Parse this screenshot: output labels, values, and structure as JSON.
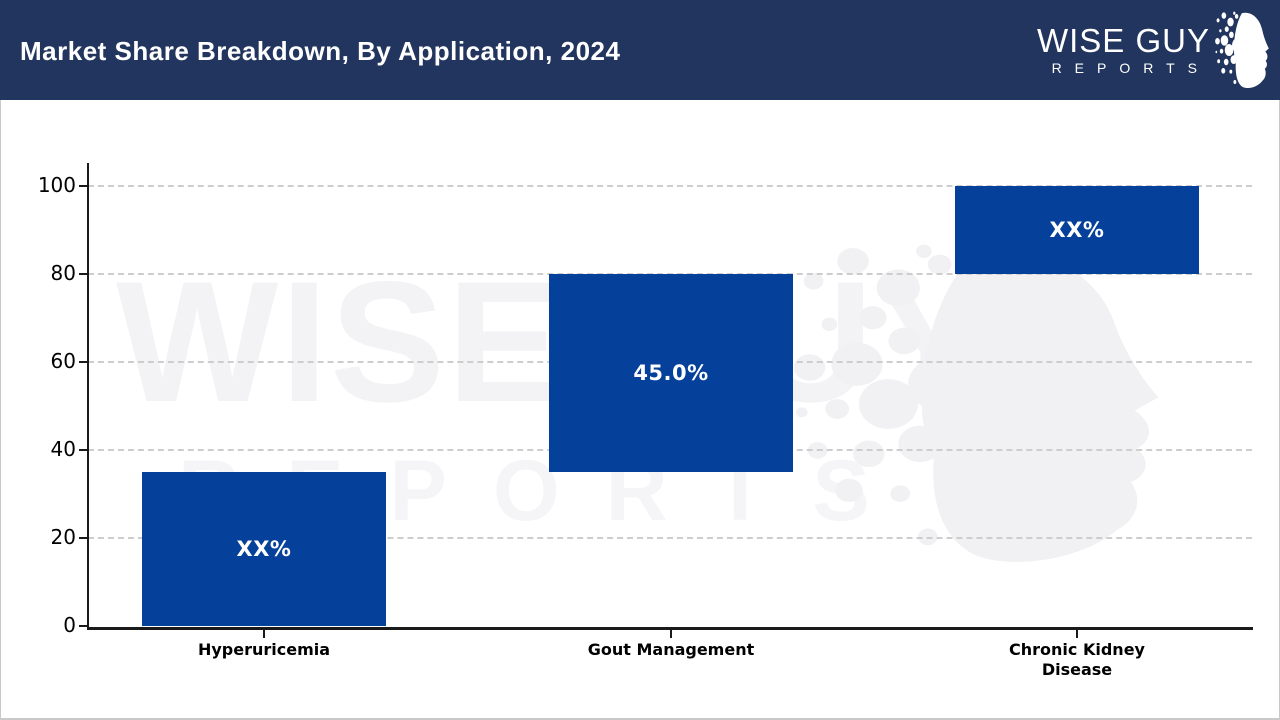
{
  "header": {
    "title": "Market Share Breakdown, By Application, 2024",
    "logo_line1": "WISE GUY",
    "logo_line2": "REPORTS",
    "bg_color": "#22355e"
  },
  "watermark": {
    "line1": "WISE GUY",
    "line2": "REPORTS"
  },
  "chart_data": {
    "type": "bar",
    "subtype": "floating_segment_waterfall",
    "title": "Market Share Breakdown, By Application, 2024",
    "categories": [
      "Hyperuricemia",
      "Gout Management",
      "Chronic Kidney Disease"
    ],
    "segments": [
      {
        "category": "Hyperuricemia",
        "start": 0,
        "end": 35,
        "label": "XX%"
      },
      {
        "category": "Gout Management",
        "start": 35,
        "end": 80,
        "label": "45.0%"
      },
      {
        "category": "Chronic Kidney Disease",
        "start": 80,
        "end": 100,
        "label": "XX%"
      }
    ],
    "values": [
      35,
      45,
      20
    ],
    "ylim": [
      0,
      100
    ],
    "yticks": [
      0,
      20,
      40,
      60,
      80,
      100
    ],
    "xlabel": "",
    "ylabel": "",
    "grid": "horizontal_dashed",
    "legend_position": "none",
    "bar_color": "#05419a",
    "bar_label_color": "#ffffff",
    "axis_color": "#1a1a1a",
    "gridline_color": "#cdcdcd"
  },
  "colors": {
    "header_bg": "#22355e",
    "card_border": "#c9c9c9",
    "watermark_text": "#f3f3f6"
  }
}
